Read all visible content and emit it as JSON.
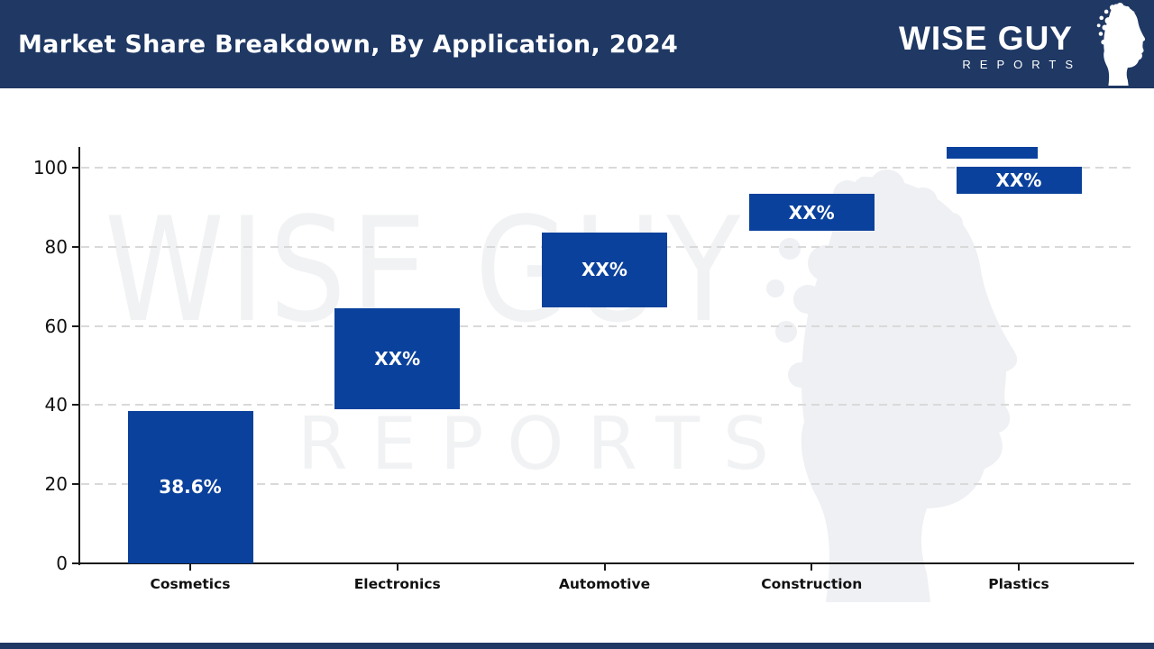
{
  "header": {
    "title": "Market Share Breakdown, By Application, 2024",
    "logo_line1": "WISE GUY",
    "logo_line2": "REPORTS",
    "bg_color": "#1f3864",
    "text_color": "#ffffff"
  },
  "watermark": {
    "line1": "WISE GUY",
    "line2": "REPORTS"
  },
  "footer": {
    "bg_color": "#1f3864"
  },
  "chart_data": {
    "type": "bar",
    "subtype": "waterfall",
    "title": "Market Share Breakdown, By Application, 2024",
    "categories": [
      "Cosmetics",
      "Electronics",
      "Automotive",
      "Construction",
      "Plastics"
    ],
    "segments": [
      {
        "category": "Cosmetics",
        "start": 0,
        "end": 38.6,
        "label": "38.6%"
      },
      {
        "category": "Electronics",
        "start": 39,
        "end": 64.5,
        "label": "XX%"
      },
      {
        "category": "Automotive",
        "start": 64.8,
        "end": 83.5,
        "label": "XX%"
      },
      {
        "category": "Construction",
        "start": 84,
        "end": 93.3,
        "label": "XX%"
      },
      {
        "category": "Plastics",
        "start": 93.4,
        "end": 100.3,
        "label": "XX%"
      }
    ],
    "yticks": [
      0,
      20,
      40,
      60,
      80,
      100
    ],
    "ylim": [
      0,
      105
    ],
    "xlabel": "",
    "ylabel": "",
    "grid": "horizontal-dashed",
    "legend": false,
    "bar_color": "#0a419c",
    "bar_label_color": "#ffffff",
    "axis_color": "#1a1a1a",
    "gridline_color": "#d9d9d9"
  }
}
